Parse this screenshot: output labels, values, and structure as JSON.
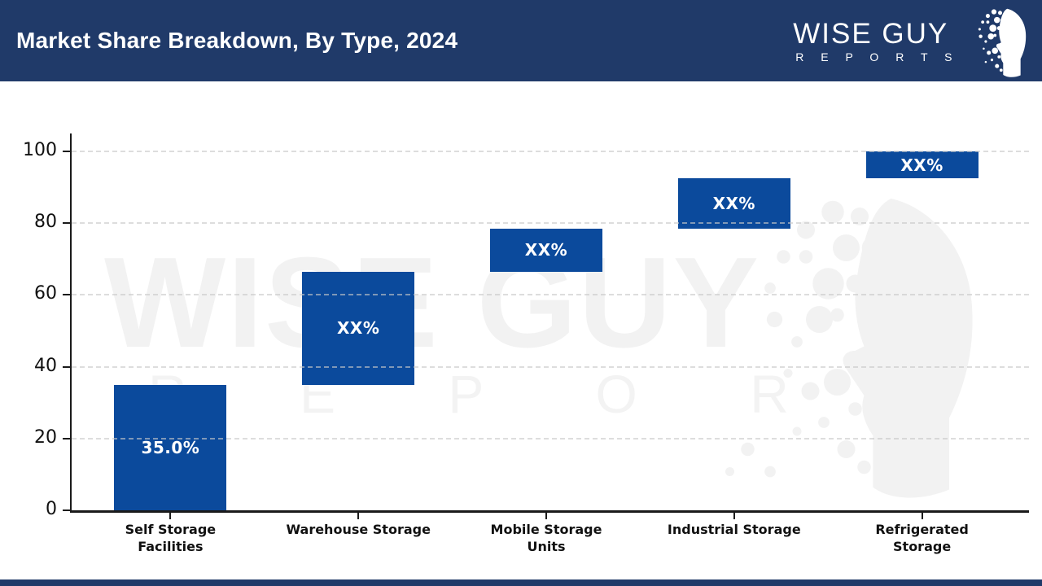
{
  "header": {
    "title": "Market Share Breakdown, By Type, 2024",
    "logo": {
      "primary": "WISE GUY",
      "secondary": "R E P O R T S"
    }
  },
  "watermark": {
    "primary": "WISE GUY",
    "secondary": "R E P O R T S"
  },
  "footer": {
    "visible": true
  },
  "colors": {
    "header_bg": "#203a69",
    "footer_bg": "#203a69",
    "bar": "#0b4a9c",
    "bar_label": "#ffffff",
    "axis": "#1a1a1a",
    "grid": "#d9d9d9",
    "watermark": "#f2f2f2",
    "title_text": "#ffffff"
  },
  "chart_data": {
    "type": "bar",
    "subtype": "waterfall",
    "title": "Market Share Breakdown, By Type, 2024",
    "xlabel": "",
    "ylabel": "",
    "ylim": [
      0,
      105
    ],
    "yticks": [
      0,
      20,
      40,
      60,
      80,
      100
    ],
    "grid": "horizontal-dashed, drawn over bars",
    "legend": "none",
    "categories": [
      "Self Storage\nFacilities",
      "Warehouse Storage",
      "Mobile Storage\nUnits",
      "Industrial Storage",
      "Refrigerated\nStorage"
    ],
    "segments": [
      {
        "category": "Self Storage Facilities",
        "start": 0,
        "end": 35,
        "label": "35.0%"
      },
      {
        "category": "Warehouse Storage",
        "start": 35,
        "end": 66.5,
        "label": "XX%"
      },
      {
        "category": "Mobile Storage Units",
        "start": 66.5,
        "end": 78.5,
        "label": "XX%"
      },
      {
        "category": "Industrial Storage",
        "start": 78.5,
        "end": 92.5,
        "label": "XX%"
      },
      {
        "category": "Refrigerated Storage",
        "start": 92.5,
        "end": 100,
        "label": "XX%"
      }
    ]
  }
}
